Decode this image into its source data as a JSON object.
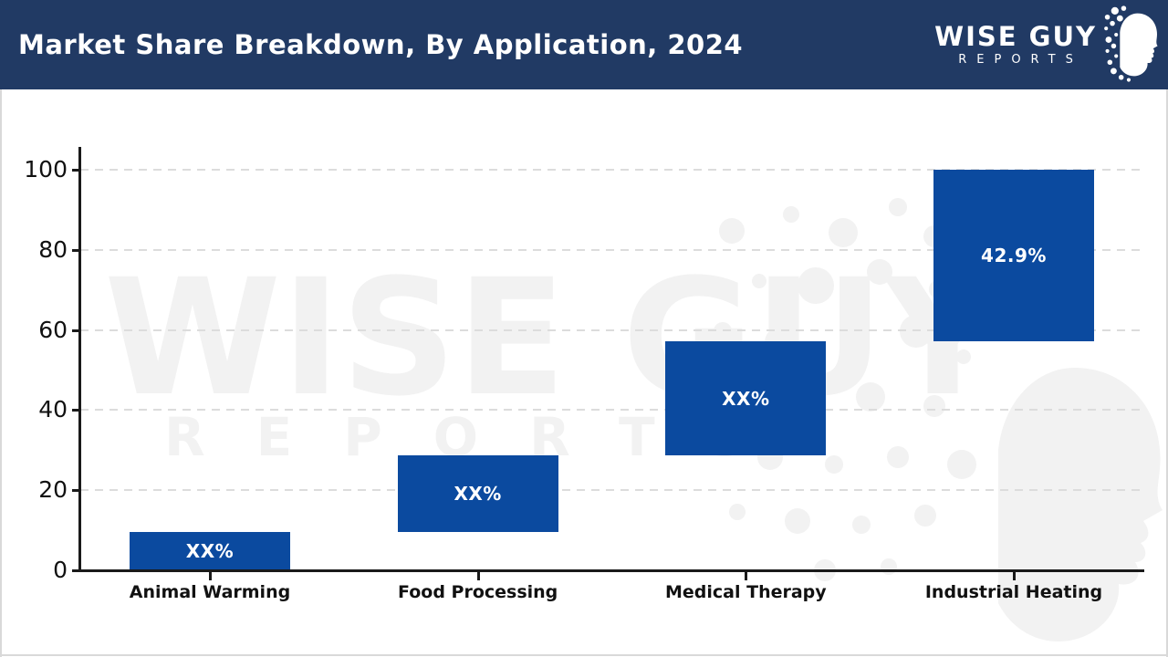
{
  "header": {
    "title": "Market Share Breakdown, By Application, 2024",
    "logo": {
      "line1": "WISE GUY",
      "line2": "REPORTS"
    }
  },
  "watermark": {
    "line1": "WISE GUY",
    "line2": "REPORTS"
  },
  "colors": {
    "header_bg": "#213a64",
    "bar_fill": "#0b4a9f",
    "bar_label": "#ffffff",
    "grid": "#dcdcdc",
    "axis": "#1a1a1a",
    "watermark": "#f2f2f2"
  },
  "chart_data": {
    "type": "bar",
    "subtype": "waterfall (cumulative floating bars)",
    "title": "Market Share Breakdown, By Application, 2024",
    "xlabel": "",
    "ylabel": "",
    "categories": [
      "Animal Warming",
      "Food Processing",
      "Medical Therapy",
      "Industrial Heating"
    ],
    "segments": [
      {
        "category": "Animal Warming",
        "start": 0,
        "end": 9.5,
        "value_label": "XX%"
      },
      {
        "category": "Food Processing",
        "start": 9.5,
        "end": 28.6,
        "value_label": "XX%"
      },
      {
        "category": "Medical Therapy",
        "start": 28.6,
        "end": 57.1,
        "value_label": "XX%"
      },
      {
        "category": "Industrial Heating",
        "start": 57.1,
        "end": 100,
        "value_label": "42.9%"
      }
    ],
    "y_ticks": [
      0,
      20,
      40,
      60,
      80,
      100
    ],
    "ylim": [
      0,
      100
    ],
    "grid": "horizontal dashed, behind bars",
    "legend": "none"
  }
}
